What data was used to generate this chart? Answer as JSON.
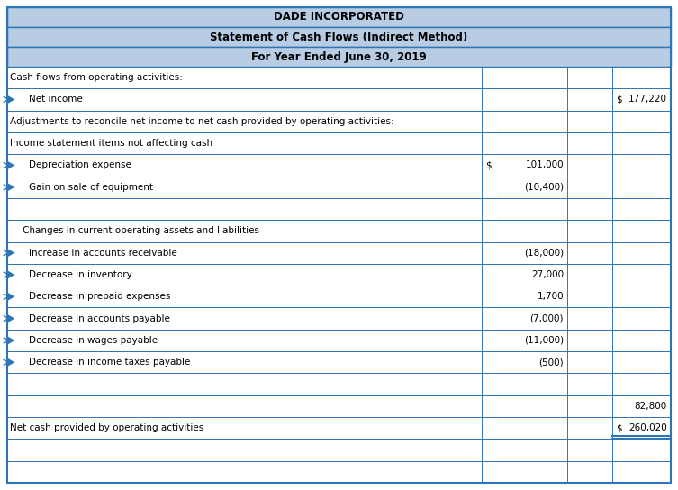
{
  "title1": "DADE INCORPORATED",
  "title2": "Statement of Cash Flows (Indirect Method)",
  "title3": "For Year Ended June 30, 2019",
  "header_bg": "#b8cce4",
  "border_color": "#2e75b6",
  "row_bg_white": "#ffffff",
  "text_color": "#000000",
  "rows": [
    {
      "label": "Cash flows from operating activities:",
      "col1_dollar": false,
      "col1_val": "",
      "col2_dollar": false,
      "col2_val": "",
      "indent": 0,
      "arrow": false,
      "subtotal": false
    },
    {
      "label": "Net income",
      "col1_dollar": false,
      "col1_val": "",
      "col2_dollar": true,
      "col2_val": "177,220",
      "indent": 1,
      "arrow": true,
      "subtotal": false
    },
    {
      "label": "Adjustments to reconcile net income to net cash provided by operating activities:",
      "col1_dollar": false,
      "col1_val": "",
      "col2_dollar": false,
      "col2_val": "",
      "indent": 0,
      "arrow": false,
      "subtotal": false
    },
    {
      "label": "Income statement items not affecting cash",
      "col1_dollar": false,
      "col1_val": "",
      "col2_dollar": false,
      "col2_val": "",
      "indent": 0,
      "arrow": false,
      "subtotal": false
    },
    {
      "label": "Depreciation expense",
      "col1_dollar": true,
      "col1_val": "101,000",
      "col2_dollar": false,
      "col2_val": "",
      "indent": 1,
      "arrow": true,
      "subtotal": false
    },
    {
      "label": "Gain on sale of equipment",
      "col1_dollar": false,
      "col1_val": "(10,400)",
      "col2_dollar": false,
      "col2_val": "",
      "indent": 1,
      "arrow": true,
      "subtotal": false
    },
    {
      "label": "",
      "col1_dollar": false,
      "col1_val": "",
      "col2_dollar": false,
      "col2_val": "",
      "indent": 0,
      "arrow": false,
      "subtotal": false,
      "spacer": true
    },
    {
      "label": "Changes in current operating assets and liabilities",
      "col1_dollar": false,
      "col1_val": "",
      "col2_dollar": false,
      "col2_val": "",
      "indent": 1,
      "arrow": false,
      "subtotal": false
    },
    {
      "label": "Increase in accounts receivable",
      "col1_dollar": false,
      "col1_val": "(18,000)",
      "col2_dollar": false,
      "col2_val": "",
      "indent": 1,
      "arrow": true,
      "subtotal": false
    },
    {
      "label": "Decrease in inventory",
      "col1_dollar": false,
      "col1_val": "27,000",
      "col2_dollar": false,
      "col2_val": "",
      "indent": 1,
      "arrow": true,
      "subtotal": false
    },
    {
      "label": "Decrease in prepaid expenses",
      "col1_dollar": false,
      "col1_val": "1,700",
      "col2_dollar": false,
      "col2_val": "",
      "indent": 1,
      "arrow": true,
      "subtotal": false
    },
    {
      "label": "Decrease in accounts payable",
      "col1_dollar": false,
      "col1_val": "(7,000)",
      "col2_dollar": false,
      "col2_val": "",
      "indent": 1,
      "arrow": true,
      "subtotal": false
    },
    {
      "label": "Decrease in wages payable",
      "col1_dollar": false,
      "col1_val": "(11,000)",
      "col2_dollar": false,
      "col2_val": "",
      "indent": 1,
      "arrow": true,
      "subtotal": false
    },
    {
      "label": "Decrease in income taxes payable",
      "col1_dollar": false,
      "col1_val": "(500)",
      "col2_dollar": false,
      "col2_val": "",
      "indent": 1,
      "arrow": true,
      "subtotal": false
    },
    {
      "label": "",
      "col1_dollar": false,
      "col1_val": "",
      "col2_dollar": false,
      "col2_val": "",
      "indent": 0,
      "arrow": false,
      "subtotal": false,
      "spacer": true
    },
    {
      "label": "",
      "col1_dollar": false,
      "col1_val": "",
      "col2_dollar": false,
      "col2_val": "82,800",
      "indent": 0,
      "arrow": false,
      "subtotal": false
    },
    {
      "label": "Net cash provided by operating activities",
      "col1_dollar": false,
      "col1_val": "",
      "col2_dollar": true,
      "col2_val": "260,020",
      "indent": 0,
      "arrow": false,
      "subtotal": true
    },
    {
      "label": "",
      "col1_dollar": false,
      "col1_val": "",
      "col2_dollar": false,
      "col2_val": "",
      "indent": 0,
      "arrow": false,
      "subtotal": false,
      "spacer": true
    },
    {
      "label": "",
      "col1_dollar": false,
      "col1_val": "",
      "col2_dollar": false,
      "col2_val": "",
      "indent": 0,
      "arrow": false,
      "subtotal": false,
      "spacer": true
    }
  ],
  "fig_width": 7.53,
  "fig_height": 5.44
}
